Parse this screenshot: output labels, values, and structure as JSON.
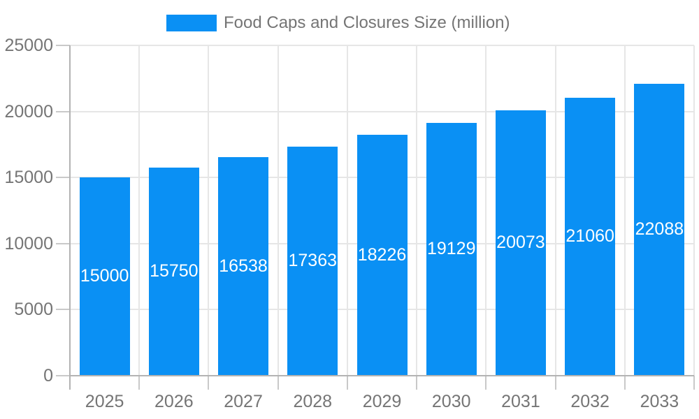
{
  "legend": {
    "label": "Food Caps and Closures Size (million)"
  },
  "colors": {
    "bar": "#0a90f4",
    "value_label": "#ffffff",
    "legend_text": "#757575",
    "axis_label": "#757575",
    "grid": "#e6e6e6",
    "axis_line": "#b3b3b3",
    "tick": "#c9c9c9",
    "background": "#ffffff"
  },
  "chart_data": {
    "type": "bar",
    "title": "Food Caps and Closures Size (million)",
    "categories": [
      "2025",
      "2026",
      "2027",
      "2028",
      "2029",
      "2030",
      "2031",
      "2032",
      "2033"
    ],
    "values": [
      15000,
      15750,
      16538,
      17363,
      18226,
      19129,
      20073,
      21060,
      22088
    ],
    "series": [
      {
        "name": "Food Caps and Closures Size (million)",
        "values": [
          15000,
          15750,
          16538,
          17363,
          18226,
          19129,
          20073,
          21060,
          22088
        ]
      }
    ],
    "xlabel": "",
    "ylabel": "",
    "ylim": [
      0,
      25000
    ],
    "yticks": [
      0,
      5000,
      10000,
      15000,
      20000,
      25000
    ],
    "grid": true,
    "legend_position": "top-center",
    "value_labels": "inside-middle"
  }
}
